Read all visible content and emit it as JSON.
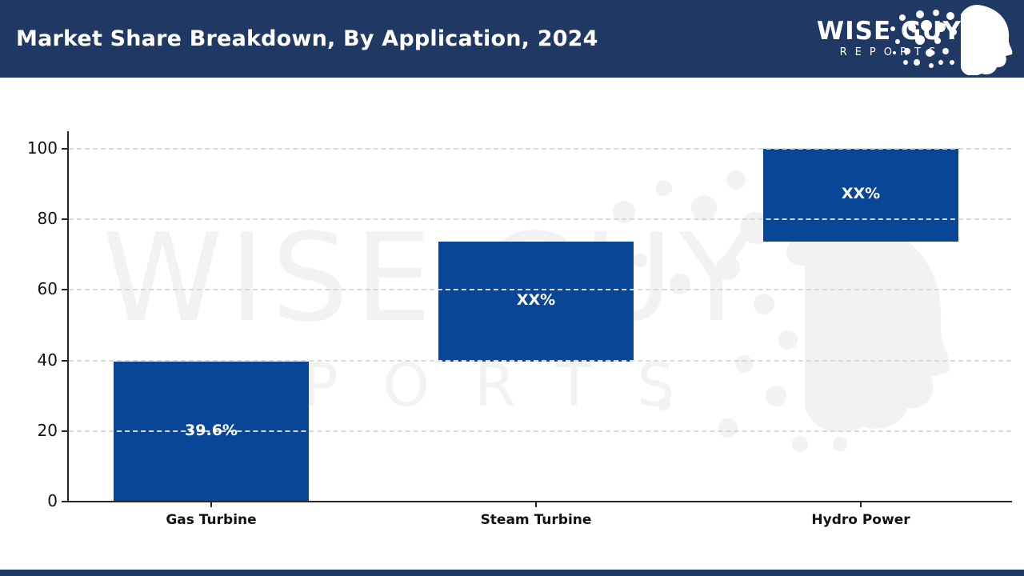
{
  "header": {
    "title": "Market Share Breakdown, By Application, 2024",
    "logo": {
      "line1": "WISE GUY",
      "line2": "REPORTS"
    }
  },
  "watermark": {
    "line1": "WISE GUY",
    "line2": "REPORTS"
  },
  "colors": {
    "header_bg": "#203864",
    "bar": "#0a4697",
    "bar_label": "#ffffff",
    "axis": "#262626",
    "grid": "#d9d9d9",
    "tick_text": "#111111",
    "watermark": "#f2f2f2"
  },
  "chart_data": {
    "type": "bar",
    "subtype": "waterfall",
    "title": "Market Share Breakdown, By Application, 2024",
    "xlabel": "",
    "ylabel": "",
    "categories": [
      "Gas Turbine",
      "Steam Turbine",
      "Hydro Power"
    ],
    "bars": [
      {
        "category": "Gas Turbine",
        "start": 0,
        "end": 39.6,
        "label": "39.6%"
      },
      {
        "category": "Steam Turbine",
        "start": 39.6,
        "end": 73.6,
        "label": "XX%"
      },
      {
        "category": "Hydro Power",
        "start": 73.6,
        "end": 100,
        "label": "XX%"
      }
    ],
    "yticks": [
      0,
      20,
      40,
      60,
      80,
      100
    ],
    "ylim": [
      0,
      105
    ],
    "grid": "horizontal-dashed",
    "legend": "none"
  }
}
